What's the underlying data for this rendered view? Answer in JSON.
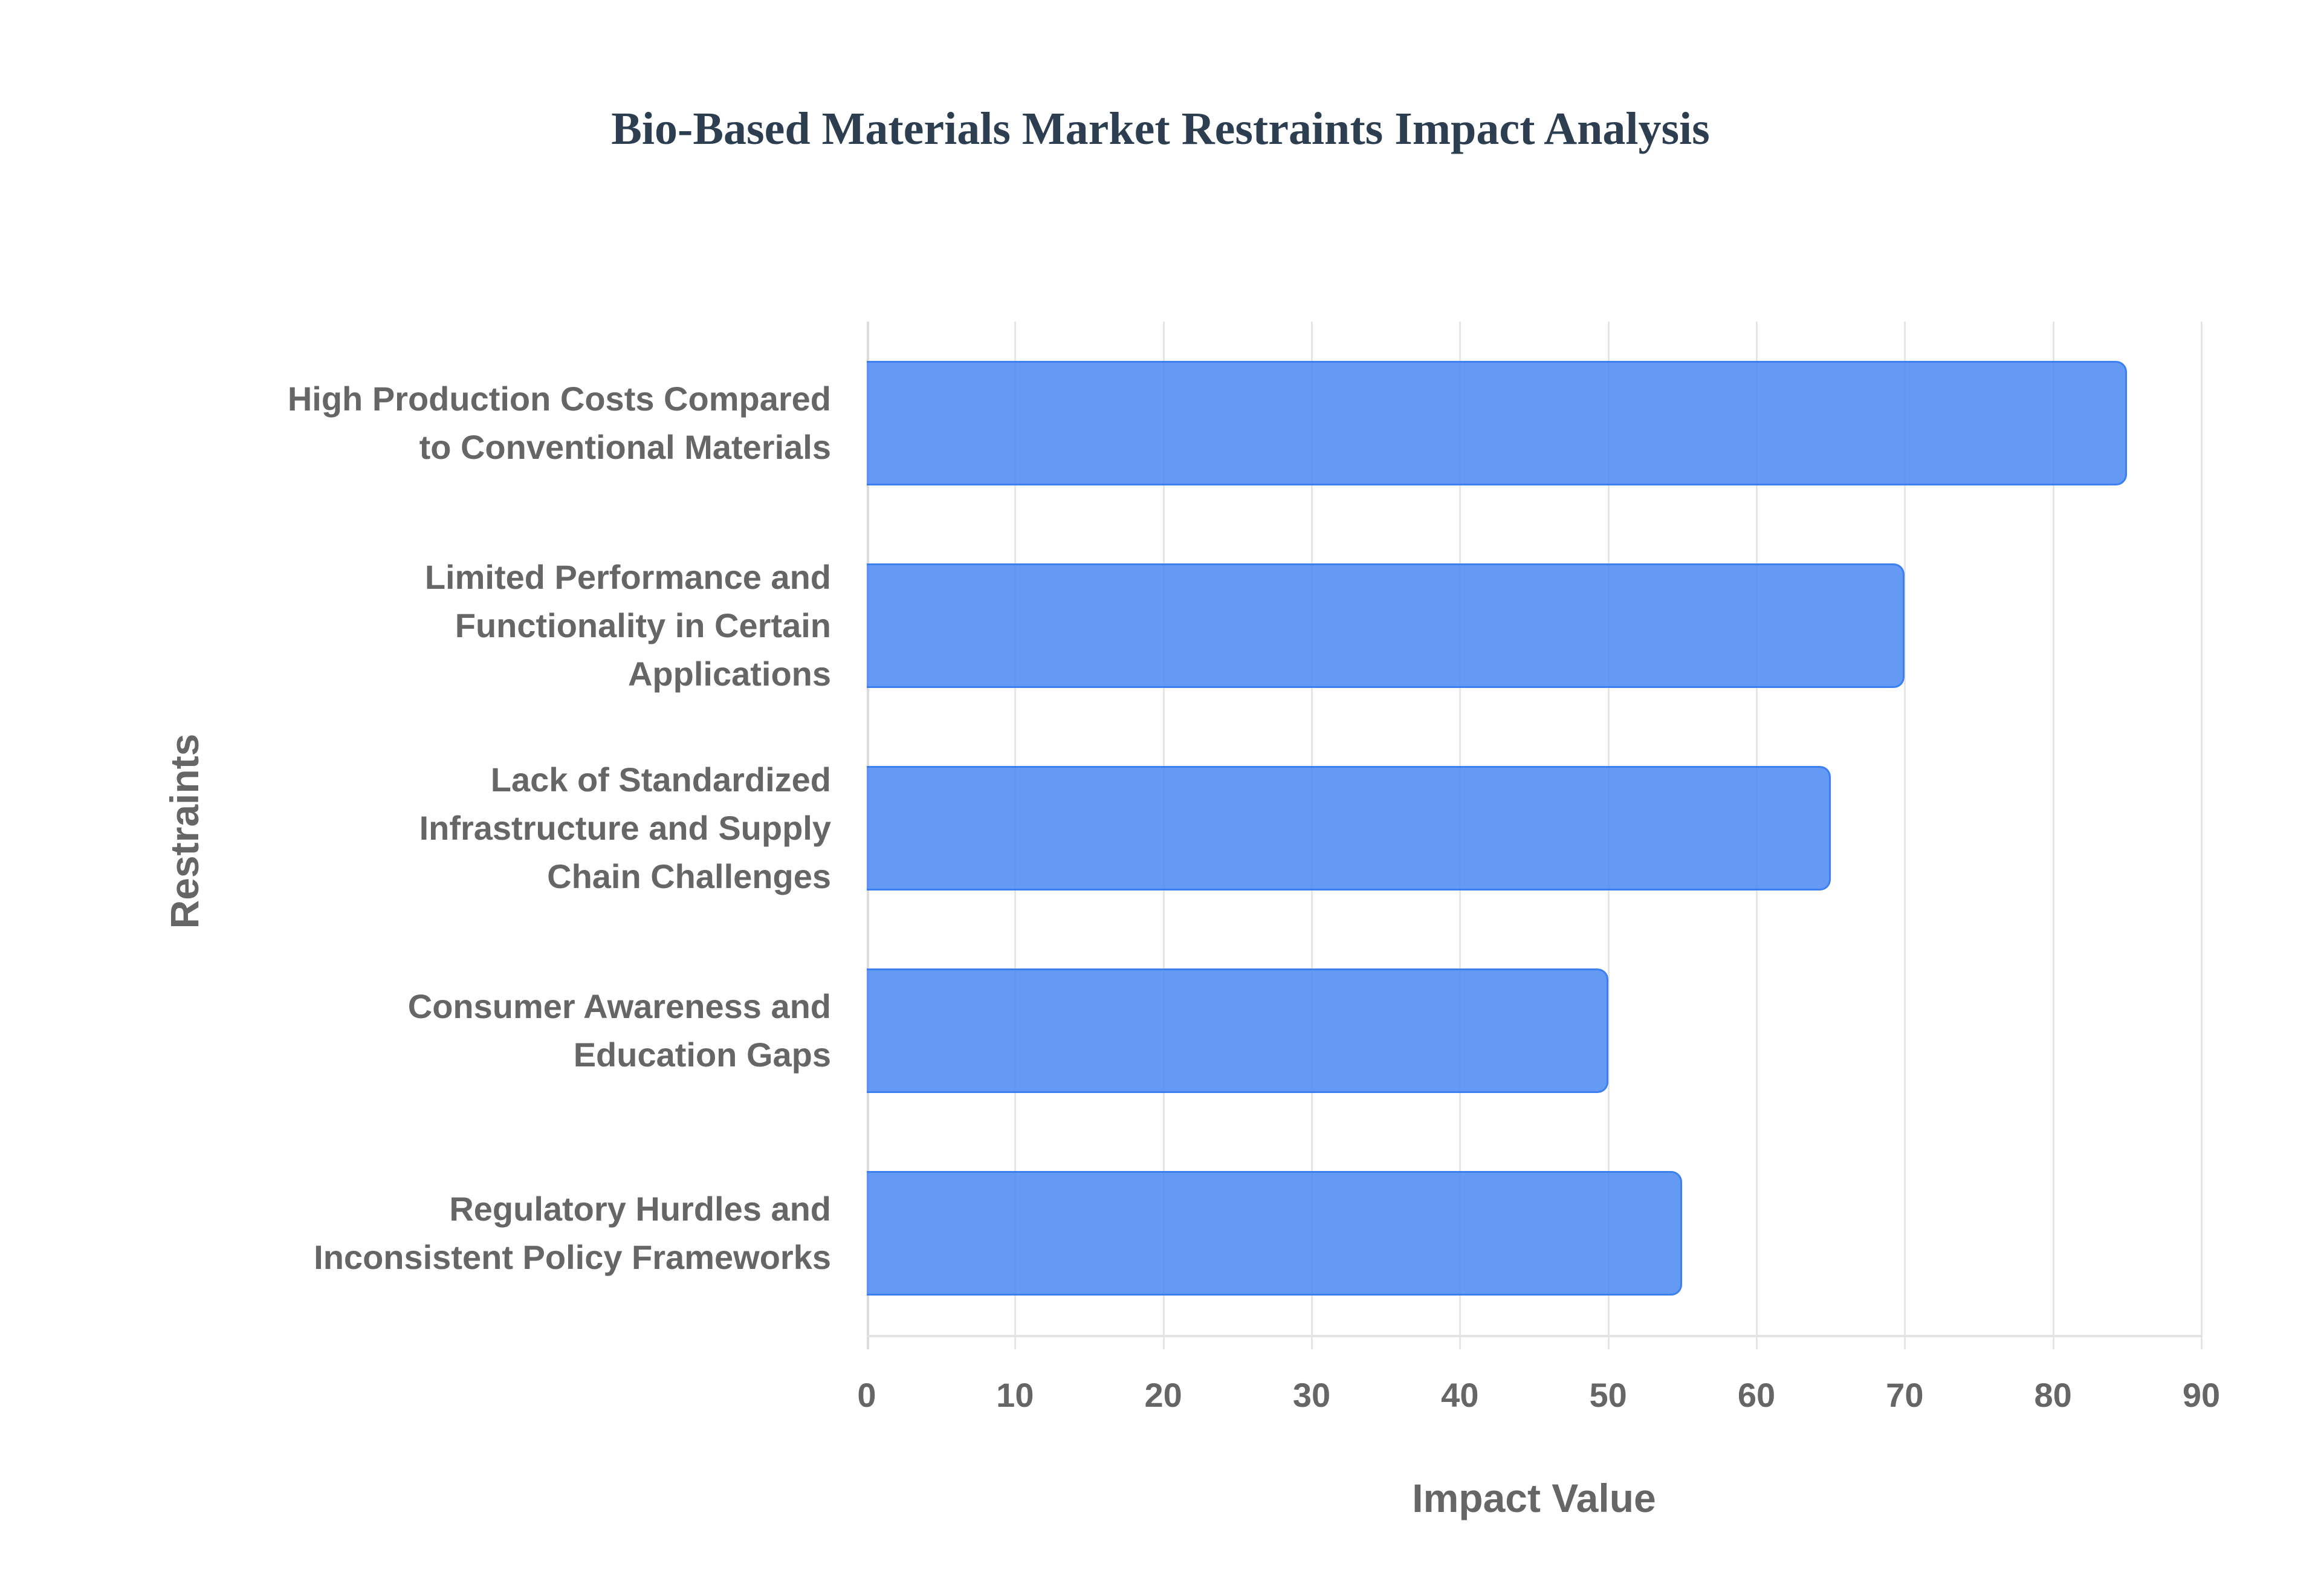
{
  "title": "Bio-Based Materials Market Restraints Impact Analysis",
  "colors": {
    "bar": "#4A88F2",
    "bar_border": "#3B7FF0",
    "title": "#2C3E50",
    "text": "#666666",
    "grid": "#E6E6E6"
  },
  "axes": {
    "x_label": "Impact Value",
    "y_label": "Restraints",
    "x_ticks": [
      "0",
      "10",
      "20",
      "30",
      "40",
      "50",
      "60",
      "70",
      "80",
      "90"
    ]
  },
  "categories": [
    {
      "lines": [
        "High Production Costs Compared",
        "to Conventional Materials"
      ],
      "value": 85
    },
    {
      "lines": [
        "Limited Performance and",
        "Functionality in Certain",
        "Applications"
      ],
      "value": 70
    },
    {
      "lines": [
        "Lack of Standardized",
        "Infrastructure and Supply",
        "Chain Challenges"
      ],
      "value": 65
    },
    {
      "lines": [
        "Consumer Awareness and",
        "Education Gaps"
      ],
      "value": 50
    },
    {
      "lines": [
        "Regulatory Hurdles and",
        "Inconsistent Policy Frameworks"
      ],
      "value": 55
    }
  ],
  "chart_data": {
    "type": "bar",
    "orientation": "horizontal",
    "title": "Bio-Based Materials Market Restraints Impact Analysis",
    "xlabel": "Impact Value",
    "ylabel": "Restraints",
    "categories": [
      "High Production Costs Compared to Conventional Materials",
      "Limited Performance and Functionality in Certain Applications",
      "Lack of Standardized Infrastructure and Supply Chain Challenges",
      "Consumer Awareness and Education Gaps",
      "Regulatory Hurdles and Inconsistent Policy Frameworks"
    ],
    "values": [
      85,
      70,
      65,
      50,
      55
    ],
    "xlim": [
      0,
      90
    ],
    "x_ticks": [
      0,
      10,
      20,
      30,
      40,
      50,
      60,
      70,
      80,
      90
    ],
    "grid": {
      "vertical": true,
      "horizontal": false
    },
    "legend": null,
    "bar_color": "#4A88F2"
  }
}
